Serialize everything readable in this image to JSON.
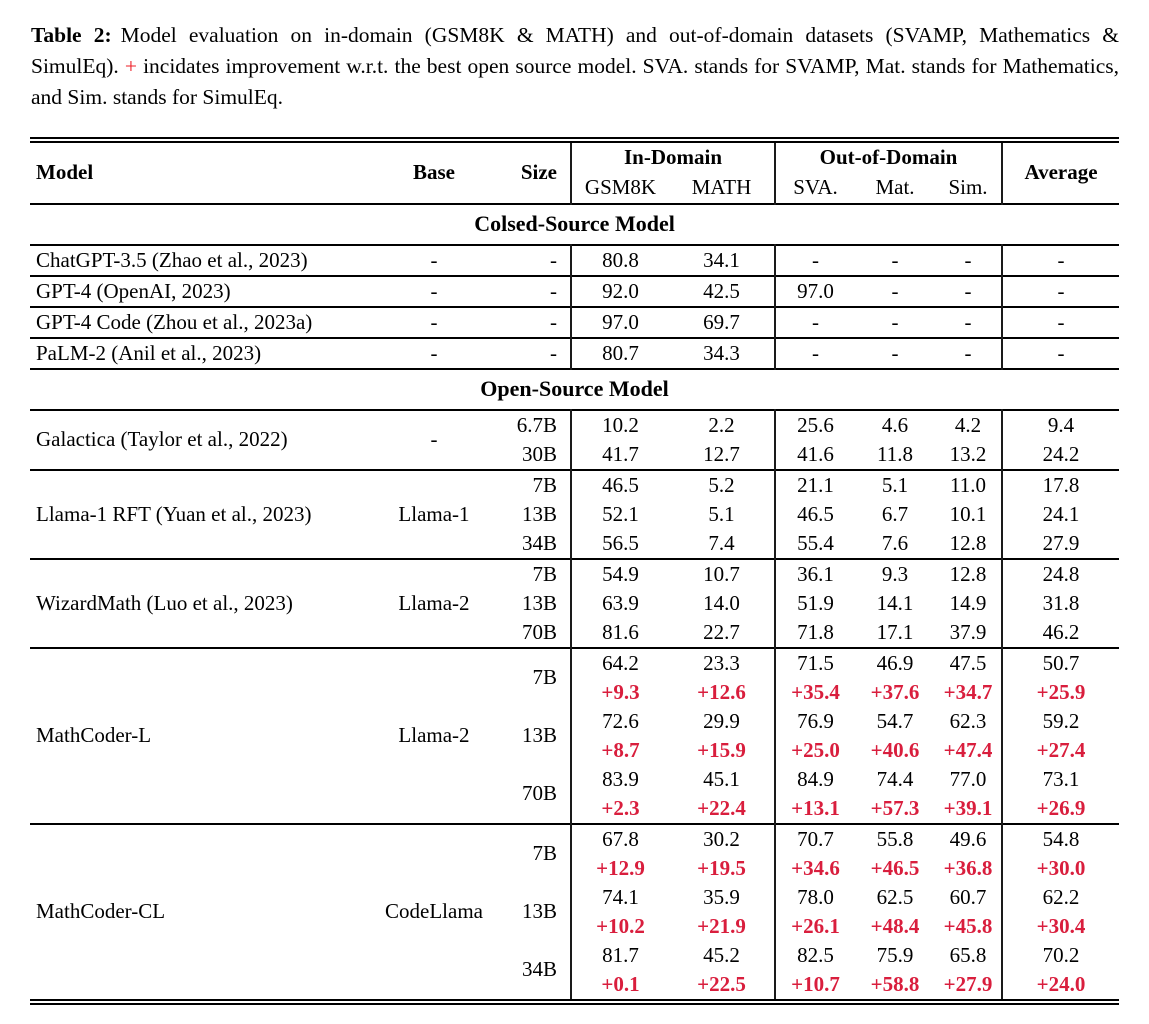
{
  "colors": {
    "delta_red": "#d91e3d",
    "plus_red": "#ee1c25",
    "rule_black": "#000000"
  },
  "caption": {
    "label": "Table 2:",
    "text_before_plus": "Model evaluation on in-domain (GSM8K & MATH) and out-of-domain datasets (SVAMP, Mathematics & SimulEq).",
    "plus": "+",
    "text_after_plus": "incidates improvement w.r.t. the best open source model. SVA. stands for SVAMP, Mat. stands for Mathematics, and Sim. stands for SimulEq."
  },
  "table": {
    "header": {
      "model": "Model",
      "base": "Base",
      "size": "Size",
      "in_domain": "In-Domain",
      "out_of_domain": "Out-of-Domain",
      "average": "Average",
      "subcols": [
        "GSM8K",
        "MATH",
        "SVA.",
        "Mat.",
        "Sim."
      ]
    },
    "sections": [
      {
        "title": "Colsed-Source Model",
        "groups": [
          {
            "model": "ChatGPT-3.5 (Zhao et al., 2023)",
            "base": "-",
            "rows": [
              {
                "size": "-",
                "values": [
                  "80.8",
                  "34.1",
                  "-",
                  "-",
                  "-",
                  "-"
                ]
              }
            ]
          },
          {
            "model": "GPT-4 (OpenAI, 2023)",
            "base": "-",
            "rows": [
              {
                "size": "-",
                "values": [
                  "92.0",
                  "42.5",
                  "97.0",
                  "-",
                  "-",
                  "-"
                ]
              }
            ]
          },
          {
            "model": "GPT-4 Code (Zhou et al., 2023a)",
            "base": "-",
            "rows": [
              {
                "size": "-",
                "values": [
                  "97.0",
                  "69.7",
                  "-",
                  "-",
                  "-",
                  "-"
                ]
              }
            ]
          },
          {
            "model": "PaLM-2 (Anil et al., 2023)",
            "base": "-",
            "rows": [
              {
                "size": "-",
                "values": [
                  "80.7",
                  "34.3",
                  "-",
                  "-",
                  "-",
                  "-"
                ]
              }
            ]
          }
        ]
      },
      {
        "title": "Open-Source Model",
        "groups": [
          {
            "model": "Galactica (Taylor et al., 2022)",
            "base": "-",
            "rows": [
              {
                "size": "6.7B",
                "values": [
                  "10.2",
                  "2.2",
                  "25.6",
                  "4.6",
                  "4.2",
                  "9.4"
                ]
              },
              {
                "size": "30B",
                "values": [
                  "41.7",
                  "12.7",
                  "41.6",
                  "11.8",
                  "13.2",
                  "24.2"
                ]
              }
            ]
          },
          {
            "model": "Llama-1 RFT (Yuan et al., 2023)",
            "base": "Llama-1",
            "rows": [
              {
                "size": "7B",
                "values": [
                  "46.5",
                  "5.2",
                  "21.1",
                  "5.1",
                  "11.0",
                  "17.8"
                ]
              },
              {
                "size": "13B",
                "values": [
                  "52.1",
                  "5.1",
                  "46.5",
                  "6.7",
                  "10.1",
                  "24.1"
                ]
              },
              {
                "size": "34B",
                "values": [
                  "56.5",
                  "7.4",
                  "55.4",
                  "7.6",
                  "12.8",
                  "27.9"
                ]
              }
            ]
          },
          {
            "model": "WizardMath (Luo et al., 2023)",
            "base": "Llama-2",
            "rows": [
              {
                "size": "7B",
                "values": [
                  "54.9",
                  "10.7",
                  "36.1",
                  "9.3",
                  "12.8",
                  "24.8"
                ]
              },
              {
                "size": "13B",
                "values": [
                  "63.9",
                  "14.0",
                  "51.9",
                  "14.1",
                  "14.9",
                  "31.8"
                ]
              },
              {
                "size": "70B",
                "values": [
                  "81.6",
                  "22.7",
                  "71.8",
                  "17.1",
                  "37.9",
                  "46.2"
                ]
              }
            ]
          },
          {
            "model": "MathCoder-L",
            "base": "Llama-2",
            "rows": [
              {
                "size": "7B",
                "values": [
                  "64.2",
                  "23.3",
                  "71.5",
                  "46.9",
                  "47.5",
                  "50.7"
                ],
                "delta": [
                  "+9.3",
                  "+12.6",
                  "+35.4",
                  "+37.6",
                  "+34.7",
                  "+25.9"
                ]
              },
              {
                "size": "13B",
                "values": [
                  "72.6",
                  "29.9",
                  "76.9",
                  "54.7",
                  "62.3",
                  "59.2"
                ],
                "delta": [
                  "+8.7",
                  "+15.9",
                  "+25.0",
                  "+40.6",
                  "+47.4",
                  "+27.4"
                ]
              },
              {
                "size": "70B",
                "values": [
                  "83.9",
                  "45.1",
                  "84.9",
                  "74.4",
                  "77.0",
                  "73.1"
                ],
                "delta": [
                  "+2.3",
                  "+22.4",
                  "+13.1",
                  "+57.3",
                  "+39.1",
                  "+26.9"
                ]
              }
            ]
          },
          {
            "model": "MathCoder-CL",
            "base": "CodeLlama",
            "rows": [
              {
                "size": "7B",
                "values": [
                  "67.8",
                  "30.2",
                  "70.7",
                  "55.8",
                  "49.6",
                  "54.8"
                ],
                "delta": [
                  "+12.9",
                  "+19.5",
                  "+34.6",
                  "+46.5",
                  "+36.8",
                  "+30.0"
                ]
              },
              {
                "size": "13B",
                "values": [
                  "74.1",
                  "35.9",
                  "78.0",
                  "62.5",
                  "60.7",
                  "62.2"
                ],
                "delta": [
                  "+10.2",
                  "+21.9",
                  "+26.1",
                  "+48.4",
                  "+45.8",
                  "+30.4"
                ]
              },
              {
                "size": "34B",
                "values": [
                  "81.7",
                  "45.2",
                  "82.5",
                  "75.9",
                  "65.8",
                  "70.2"
                ],
                "delta": [
                  "+0.1",
                  "+22.5",
                  "+10.7",
                  "+58.8",
                  "+27.9",
                  "+24.0"
                ]
              }
            ]
          }
        ]
      }
    ]
  }
}
